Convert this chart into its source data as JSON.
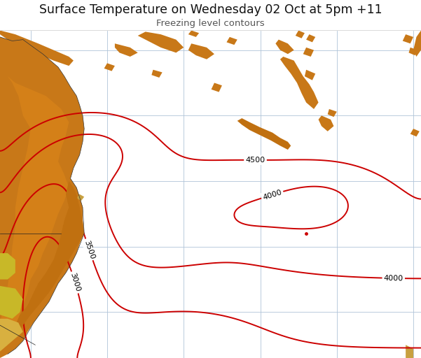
{
  "title": "Surface Temperature on Wednesday 02 Oct at 5pm +11",
  "subtitle": "Freezing level contours",
  "title_fontsize": 12.5,
  "subtitle_fontsize": 9.5,
  "background_color": "#ffffff",
  "ocean_color": "#c5d5e8",
  "contour_color": "#cc0000",
  "contour_linewidth": 1.4,
  "contour_levels": [
    3000,
    3500,
    4000,
    4500
  ],
  "lon_min": 148.0,
  "lon_max": 175.5,
  "lat_min": -38.5,
  "lat_max": -13.5,
  "grid_color": "#b0c4d8",
  "grid_lons": [
    150,
    155,
    160,
    165,
    170,
    175
  ],
  "grid_lats": [
    -35,
    -30,
    -25,
    -20,
    -15
  ]
}
